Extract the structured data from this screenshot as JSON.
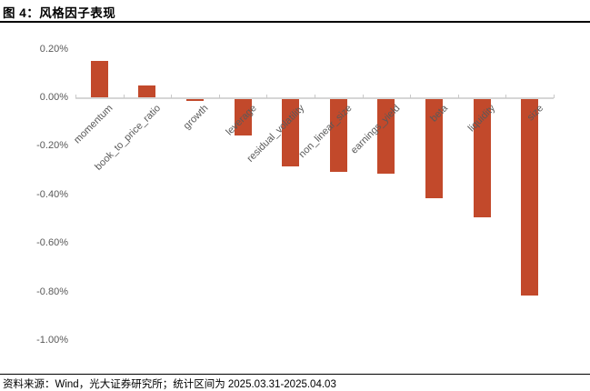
{
  "title": "图 4：风格因子表现",
  "footer": "资料来源：Wind，光大证券研究所；统计区间为 2025.03.31-2025.04.03",
  "chart_data": {
    "type": "bar",
    "title": "图 4：风格因子表现",
    "xlabel": "",
    "ylabel": "",
    "unit": "%",
    "categories": [
      "momentum",
      "book_to_price_ratio",
      "growth",
      "leverage",
      "residual_volatility",
      "non_linear_size",
      "earnings_yield",
      "beta",
      "liquidity",
      "size"
    ],
    "values": [
      0.15,
      0.05,
      -0.01,
      -0.15,
      -0.28,
      -0.3,
      -0.31,
      -0.41,
      -0.49,
      -0.81
    ],
    "y_ticks": [
      "0.20%",
      "0.00%",
      "-0.20%",
      "-0.40%",
      "-0.60%",
      "-0.80%",
      "-1.00%"
    ],
    "y_tick_values": [
      0.2,
      0.0,
      -0.2,
      -0.4,
      -0.6,
      -0.8,
      -1.0
    ],
    "ylim": [
      -1.1,
      0.3
    ],
    "grid": false,
    "legend": false,
    "bar_color": "#c2492b",
    "axis_color": "#d6d6d6",
    "label_color": "#595959"
  }
}
